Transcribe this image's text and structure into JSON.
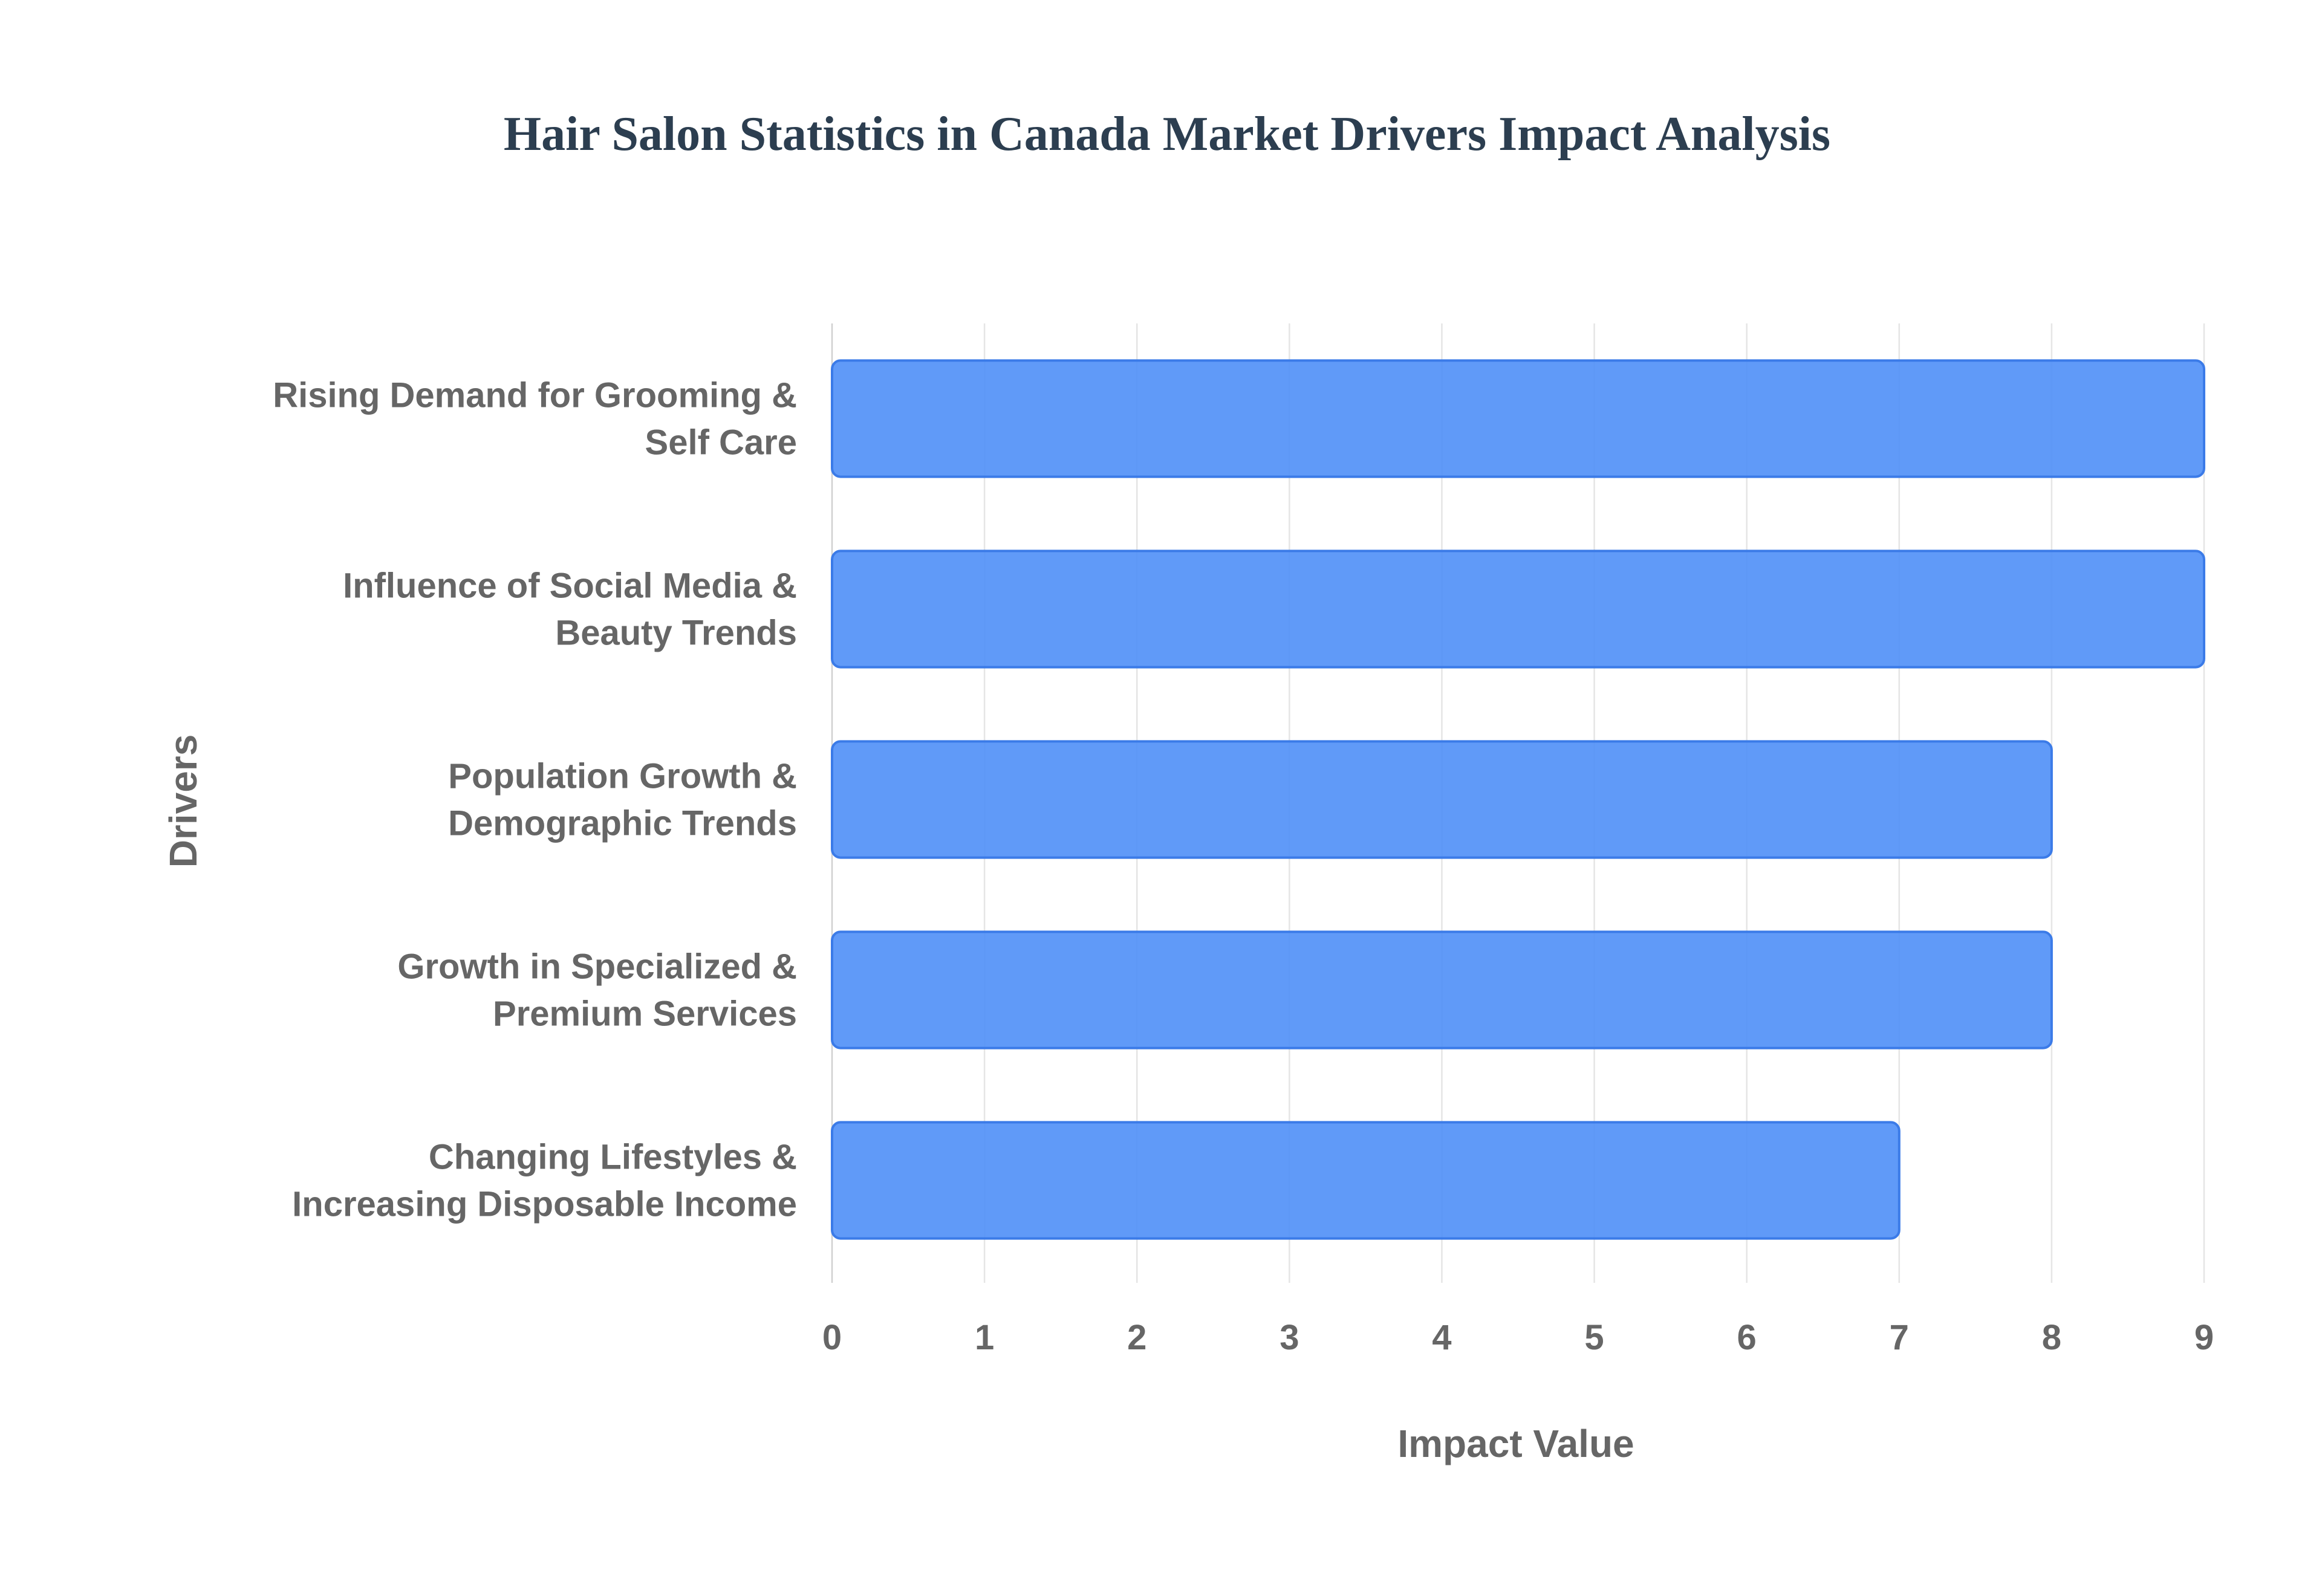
{
  "chart_data": {
    "type": "bar",
    "orientation": "horizontal",
    "title": "Hair Salon Statistics in Canada Market Drivers Impact Analysis",
    "xlabel": "Impact Value",
    "ylabel": "Drivers",
    "xlim": [
      0,
      9
    ],
    "xticks": [
      "0",
      "1",
      "2",
      "3",
      "4",
      "5",
      "6",
      "7",
      "8",
      "9"
    ],
    "categories": [
      [
        "Rising Demand for Grooming &",
        "Self Care"
      ],
      [
        "Influence of Social Media &",
        "Beauty Trends"
      ],
      [
        "Population Growth &",
        "Demographic Trends"
      ],
      [
        "Growth in Specialized &",
        "Premium Services"
      ],
      [
        "Changing Lifestyles &",
        "Increasing Disposable Income"
      ]
    ],
    "values": [
      9,
      9,
      8,
      8,
      7
    ],
    "grid": true,
    "legend": "none",
    "colors": {
      "bar_fill": "#4f8ff7",
      "bar_stroke": "#3b7be8",
      "title": "#2c3e50",
      "labels": "#666666"
    }
  }
}
